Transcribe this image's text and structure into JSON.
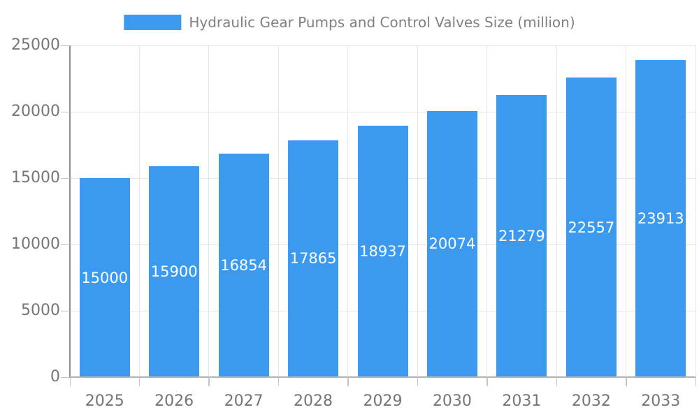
{
  "chart_data": {
    "type": "bar",
    "title": "Hydraulic Gear Pumps and Control Valves Size (million)",
    "categories": [
      "2025",
      "2026",
      "2027",
      "2028",
      "2029",
      "2030",
      "2031",
      "2032",
      "2033"
    ],
    "values": [
      15000,
      15900,
      16854,
      17865,
      18937,
      20074,
      21279,
      22557,
      23913
    ],
    "xlabel": "",
    "ylabel": "",
    "ylim": [
      0,
      25000
    ],
    "yticks": [
      0,
      5000,
      10000,
      15000,
      20000,
      25000
    ],
    "grid": true,
    "legend_position": "top",
    "bar_value_labels_shown": true,
    "colors": {
      "bar": "#3b99ee",
      "grid_line": "#e6e6e6",
      "axis_line_left": "#8f8f8f",
      "axis_line_bottom": "#b3b3b3",
      "tick_mark": "#c4c4c4",
      "tick_label_text": "#757575",
      "legend_text": "#808080",
      "bar_value_text": "#ffffff",
      "background": "#ffffff"
    }
  }
}
